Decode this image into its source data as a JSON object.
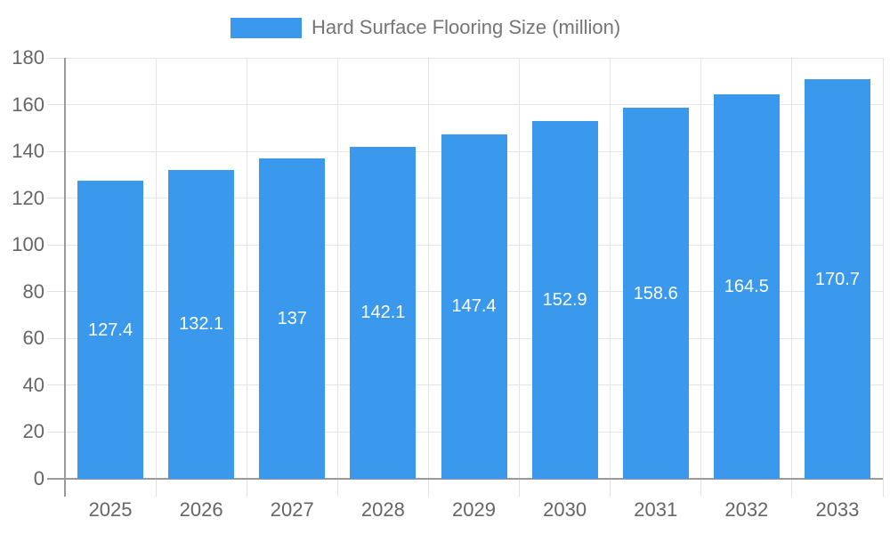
{
  "colors": {
    "bar": "#3A99EC",
    "grid": "#E5E5E5",
    "tick_mark": "#E2E2E2",
    "axis_line": "#9A9A9A",
    "axis_text": "#666666",
    "legend_text": "#757575",
    "bar_label_text": "#FFFFFF",
    "background": "#FFFFFF"
  },
  "legend": {
    "items": [
      {
        "label": "Hard Surface Flooring Size (million)",
        "swatch_color": "#3A99EC"
      }
    ]
  },
  "chart_data": {
    "type": "bar",
    "title": "",
    "categories": [
      "2025",
      "2026",
      "2027",
      "2028",
      "2029",
      "2030",
      "2031",
      "2032",
      "2033"
    ],
    "series": [
      {
        "name": "Hard Surface Flooring Size (million)",
        "values": [
          127.4,
          132.1,
          137,
          142.1,
          147.4,
          152.9,
          158.6,
          164.5,
          170.7
        ]
      }
    ],
    "data_labels": [
      "127.4",
      "132.1",
      "137",
      "142.1",
      "147.4",
      "152.9",
      "158.6",
      "164.5",
      "170.7"
    ],
    "xlabel": "",
    "ylabel": "",
    "ylim": [
      0,
      180
    ],
    "yticks": [
      "0",
      "20",
      "40",
      "60",
      "80",
      "100",
      "120",
      "140",
      "160",
      "180"
    ],
    "grid": true,
    "legend_position": "top-center"
  }
}
